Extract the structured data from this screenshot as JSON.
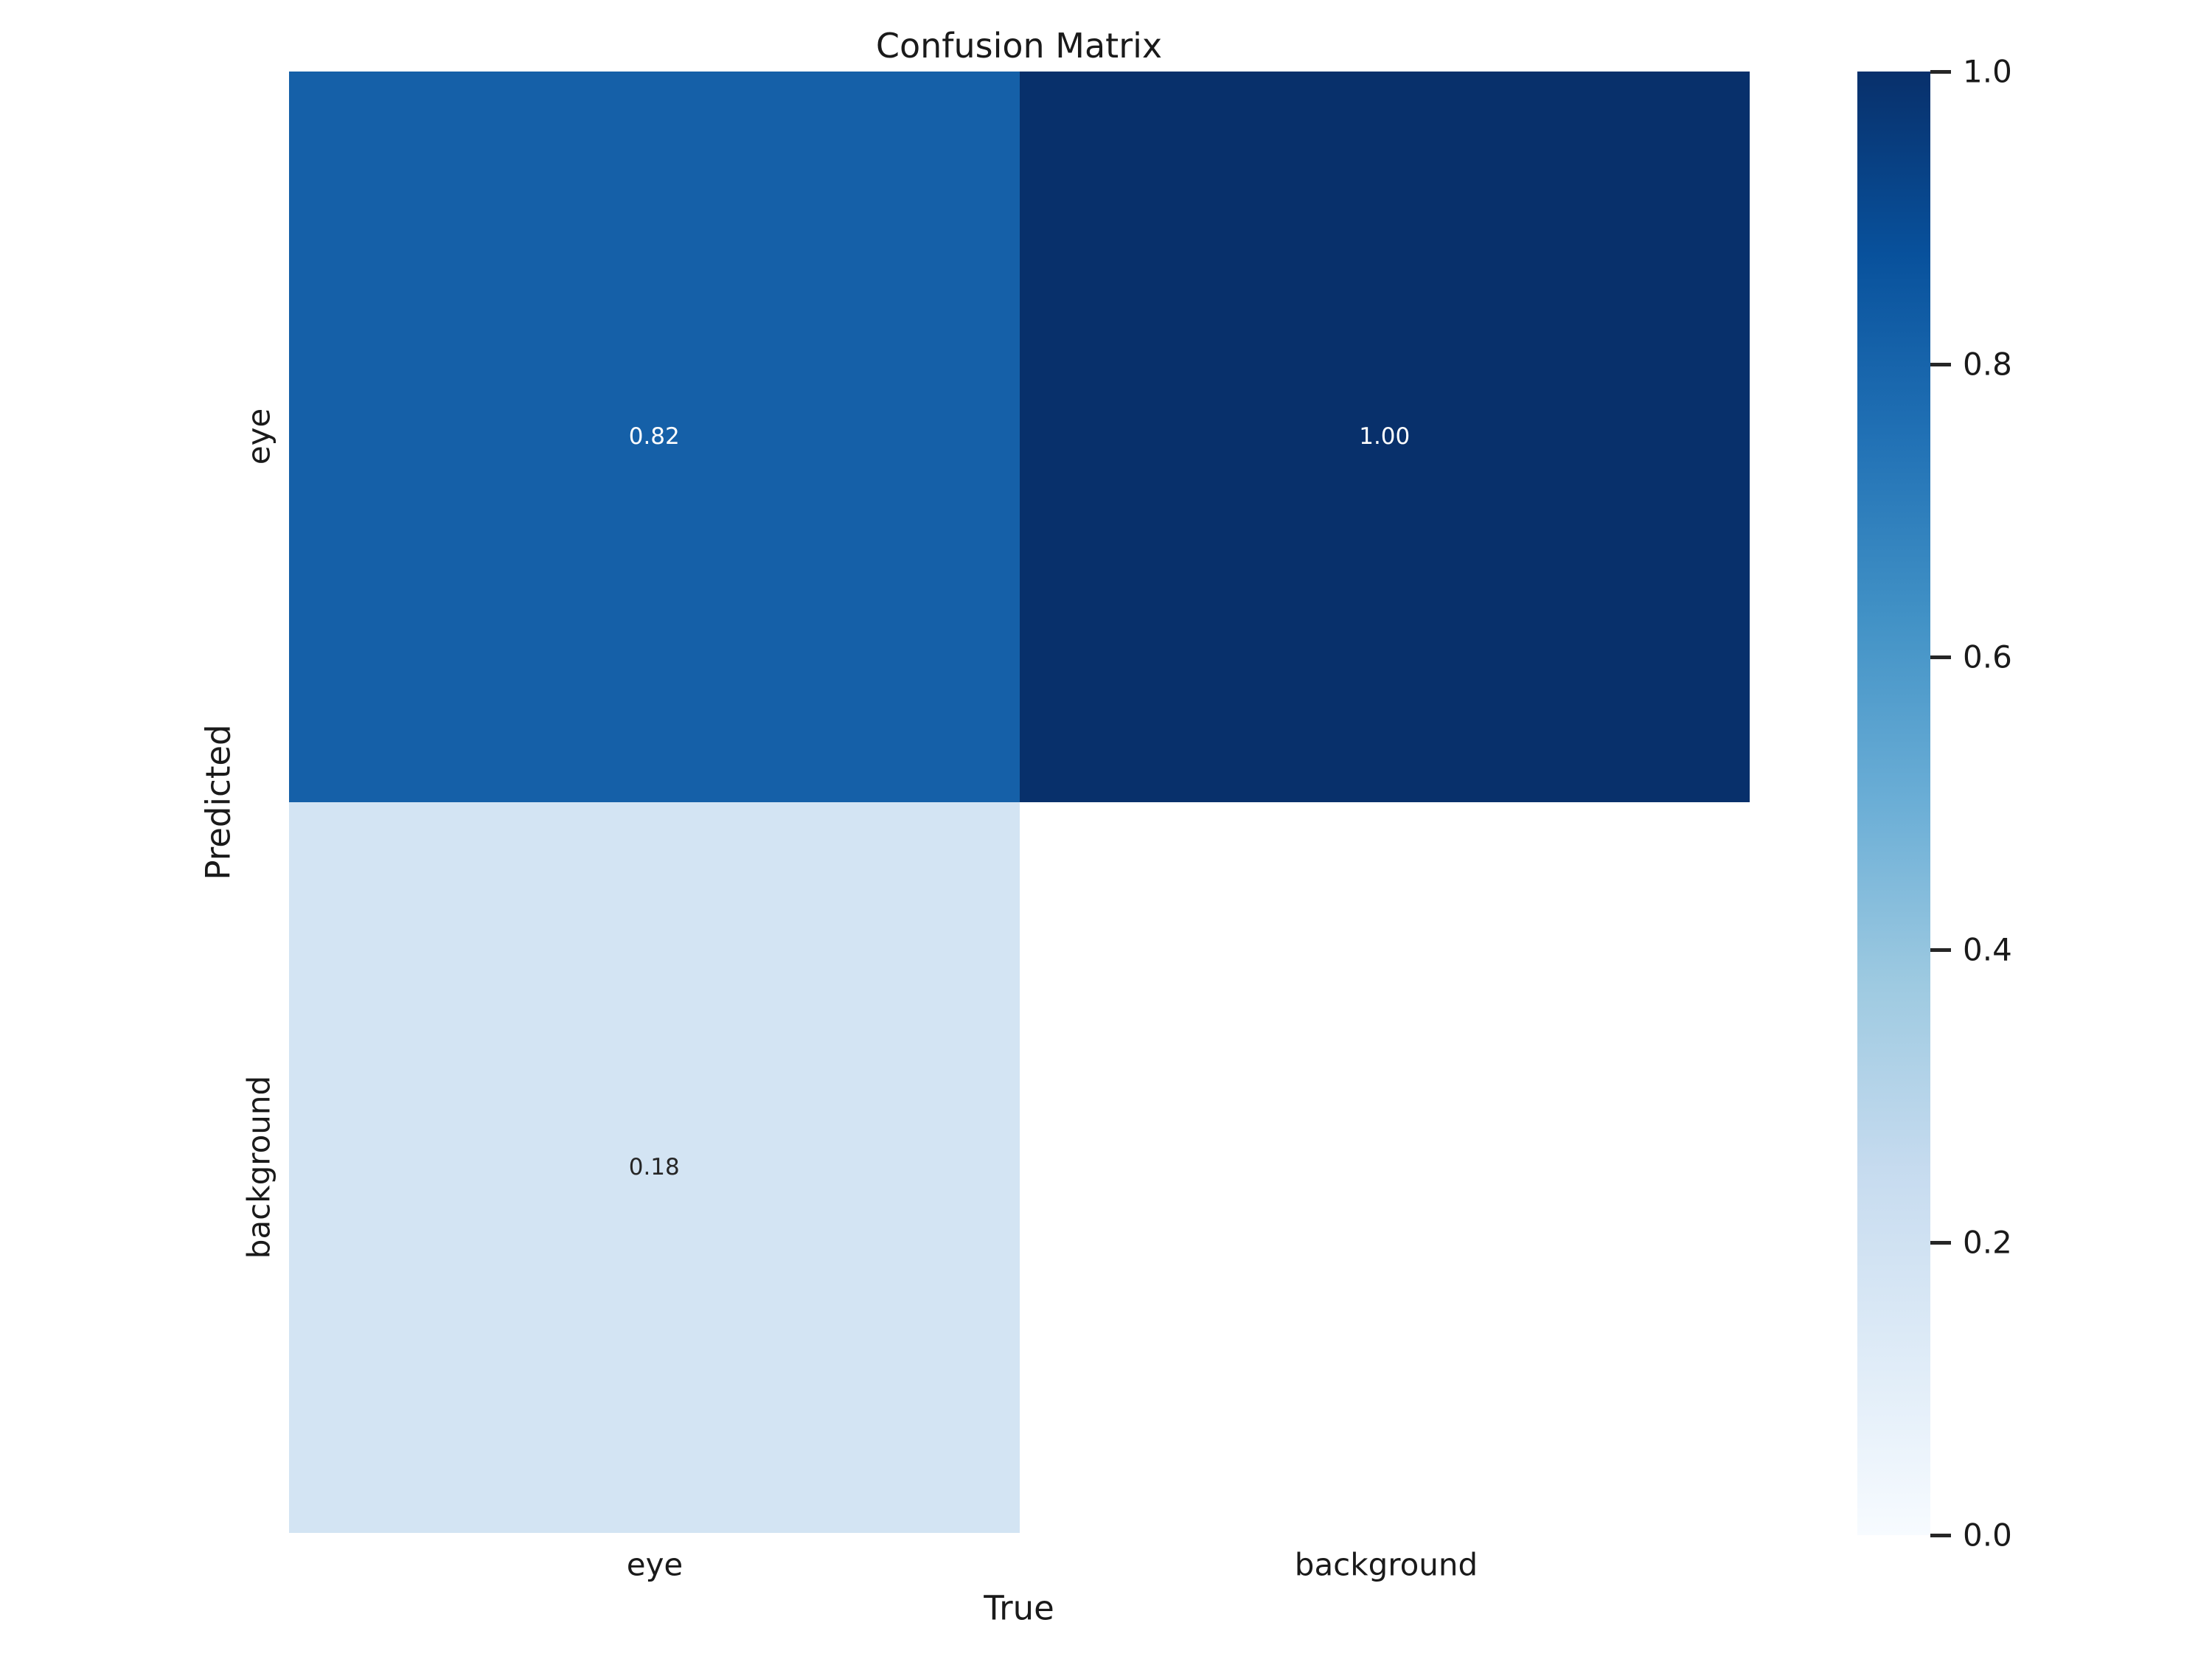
{
  "chart_data": {
    "type": "heatmap",
    "title": "Confusion Matrix",
    "xlabel": "True",
    "ylabel": "Predicted",
    "x_categories": [
      "eye",
      "background"
    ],
    "y_categories": [
      "eye",
      "background"
    ],
    "matrix_rows_predicted_by_cols_true": [
      [
        0.82,
        1.0
      ],
      [
        0.18,
        null
      ]
    ],
    "cells": [
      {
        "predicted": "eye",
        "true": "eye",
        "value": "0.82",
        "color": "#1560a8",
        "text_color": "#ffffff"
      },
      {
        "predicted": "eye",
        "true": "background",
        "value": "1.00",
        "color": "#08306b",
        "text_color": "#ffffff"
      },
      {
        "predicted": "background",
        "true": "eye",
        "value": "0.18",
        "color": "#d3e4f3",
        "text_color": "#262626"
      },
      {
        "predicted": "background",
        "true": "background",
        "value": "",
        "color": "#ffffff",
        "text_color": "#262626"
      }
    ],
    "colorbar": {
      "colormap": "Blues",
      "range": [
        0.0,
        1.0
      ],
      "ticks": [
        "1.0",
        "0.8",
        "0.6",
        "0.4",
        "0.2",
        "0.0"
      ],
      "gradient_stops_bottom_to_top": [
        "#f7fbff",
        "#deebf7",
        "#c6dbef",
        "#9ecae1",
        "#6baed6",
        "#4292c6",
        "#2171b5",
        "#08519c",
        "#08306b"
      ]
    },
    "grid": false,
    "legend_position": "none"
  }
}
